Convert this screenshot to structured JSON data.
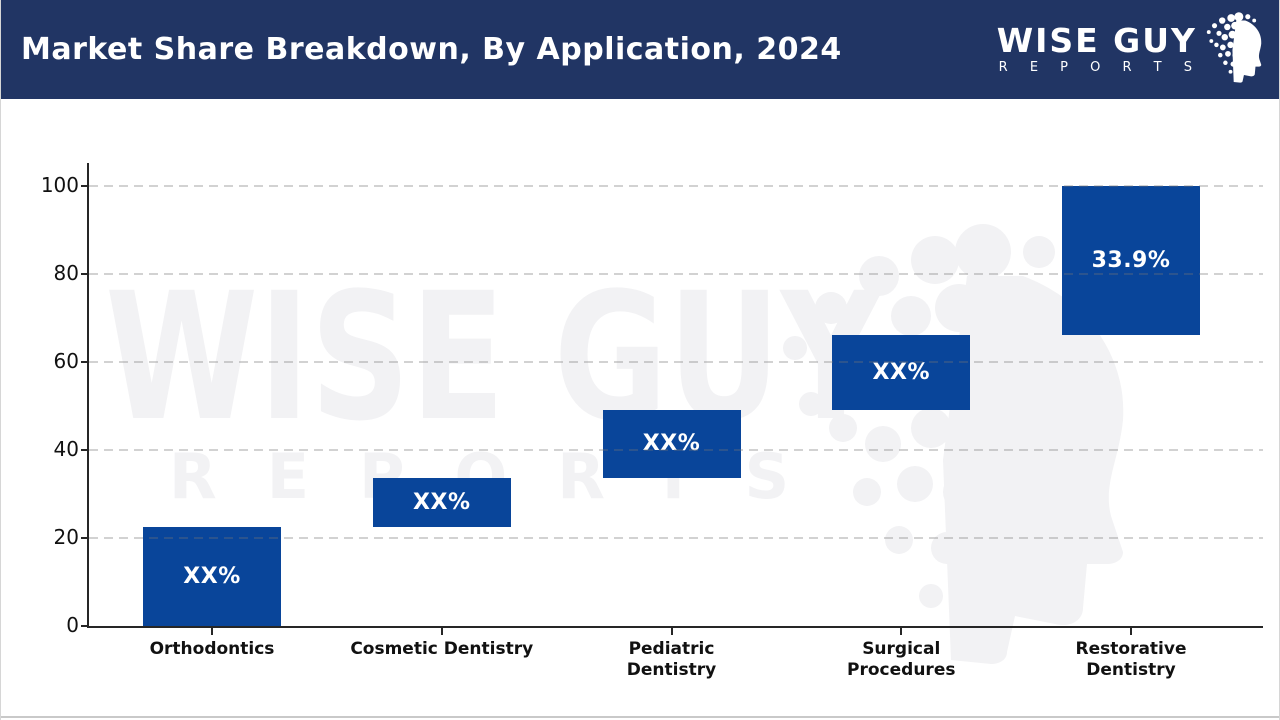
{
  "header": {
    "title": "Market Share Breakdown, By Application, 2024",
    "logo": {
      "name": "Wise Guy Reports",
      "line1": "WISE GUY",
      "line2": "R E P O R T S"
    }
  },
  "watermark": {
    "line1": "WISE GUY",
    "line2": "REPORTS"
  },
  "colors": {
    "header_bg": "#213564",
    "bar_blue": "#09459a",
    "text_dark": "#111111",
    "watermark_gray": "#f2f2f4"
  },
  "chart_data": {
    "type": "bar",
    "subtype": "waterfall",
    "title": "Market Share Breakdown, By Application, 2024",
    "xlabel": "",
    "ylabel": "",
    "ylim": [
      0,
      105
    ],
    "yticks": [
      0,
      20,
      40,
      60,
      80,
      100
    ],
    "grid": "horizontal-dashed",
    "legend": "none",
    "bar_color": "#09459a",
    "categories": [
      "Orthodontics",
      "Cosmetic Dentistry",
      "Pediatric\nDentistry",
      "Surgical\nProcedures",
      "Restorative\nDentistry"
    ],
    "bars": [
      {
        "category": "Orthodontics",
        "start": 0,
        "end": 22.5,
        "value": 22.5,
        "label": "XX%"
      },
      {
        "category": "Cosmetic Dentistry",
        "start": 22.5,
        "end": 33.6,
        "value": 11.1,
        "label": "XX%"
      },
      {
        "category": "Pediatric Dentistry",
        "start": 33.6,
        "end": 49.2,
        "value": 15.6,
        "label": "XX%"
      },
      {
        "category": "Surgical Procedures",
        "start": 49.2,
        "end": 66.1,
        "value": 16.9,
        "label": "XX%"
      },
      {
        "category": "Restorative Dentistry",
        "start": 66.1,
        "end": 100,
        "value": 33.9,
        "label": "33.9%"
      }
    ]
  }
}
